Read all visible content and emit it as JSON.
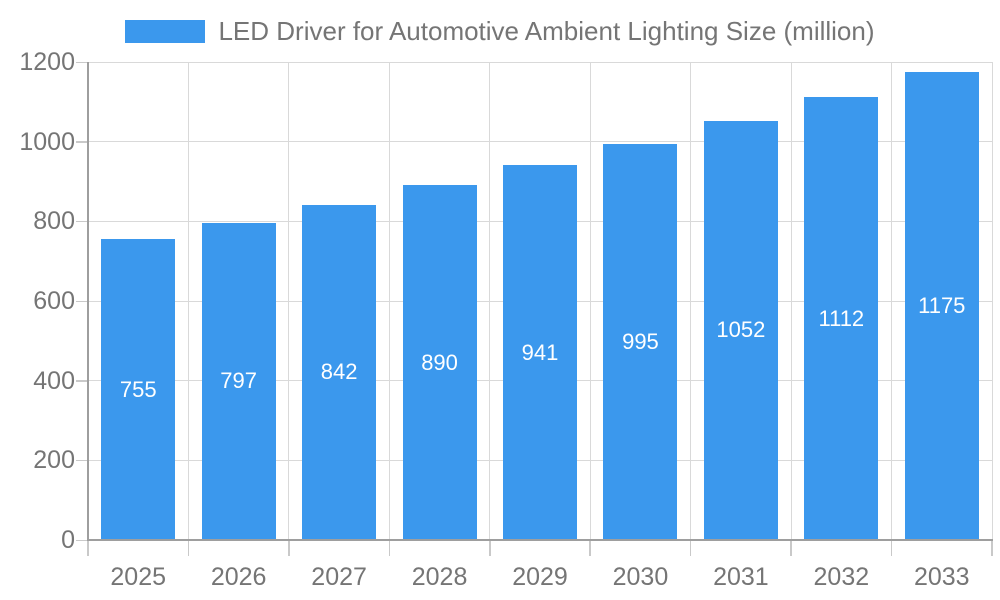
{
  "legend": {
    "label": "LED Driver for Automotive Ambient Lighting Size (million)"
  },
  "chart_data": {
    "type": "bar",
    "title": "LED Driver for Automotive Ambient Lighting Size (million)",
    "series_name": "LED Driver for Automotive Ambient Lighting Size (million)",
    "categories": [
      "2025",
      "2026",
      "2027",
      "2028",
      "2029",
      "2030",
      "2031",
      "2032",
      "2033"
    ],
    "values": [
      755,
      797,
      842,
      890,
      941,
      995,
      1052,
      1112,
      1175
    ],
    "value_labels": [
      "755",
      "797",
      "842",
      "890",
      "941",
      "995",
      "1052",
      "1112",
      "1175"
    ],
    "xlabel": "",
    "ylabel": "",
    "ylim": [
      0,
      1200
    ],
    "ytick_step": 200,
    "yticks": [
      0,
      200,
      400,
      600,
      800,
      1000,
      1200
    ],
    "grid": true,
    "legend_position": "top",
    "colors": {
      "bar": "#3B98ED",
      "grid": "#D9D9D9",
      "tick": "#C9C9C9",
      "axis": "#9E9E9E",
      "tick_text": "#757575",
      "value_label": "#FFFFFF",
      "background": "#FFFFFF"
    }
  }
}
